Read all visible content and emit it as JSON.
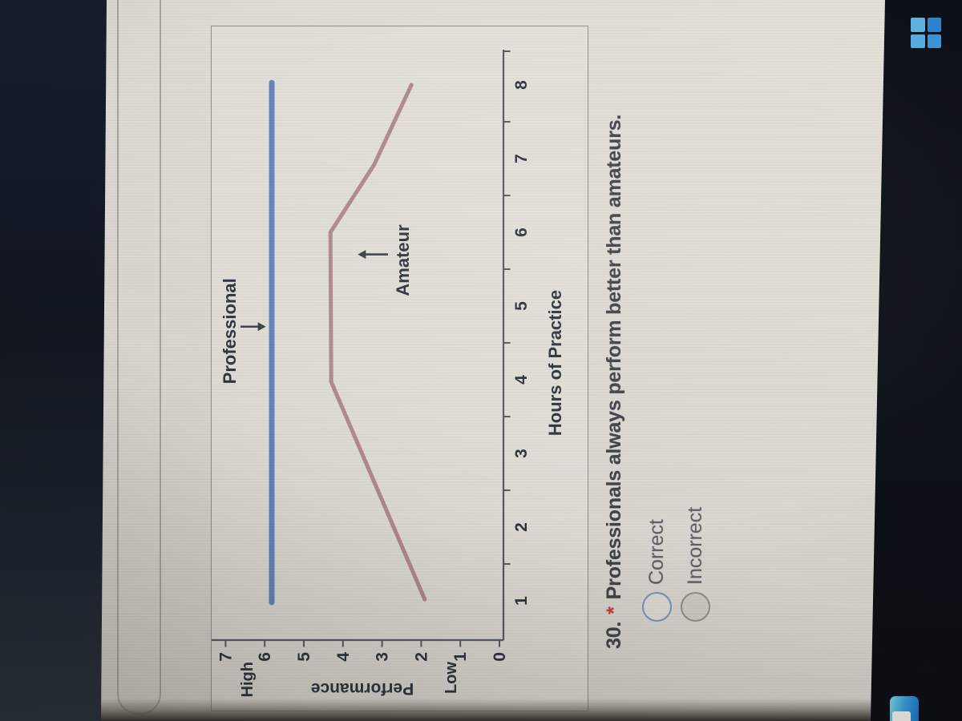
{
  "question": {
    "number": "30.",
    "required_marker": "*",
    "text": "Professionals always perform better than amateurs."
  },
  "options": [
    {
      "label": "Correct",
      "selected": false
    },
    {
      "label": "Incorrect",
      "selected": false
    }
  ],
  "colors": {
    "professional_line": "#5a7ab6",
    "amateur_line": "#aa8084",
    "required_marker_red": "#ce3a31",
    "correct_radio_ring": "#7693bb",
    "incorrect_radio_ring": "#8f8e89",
    "windows_logo_blue": "#3b93d4",
    "screen_background": "#d8d5ce"
  },
  "chart_data": {
    "type": "line",
    "title": "",
    "xlabel": "Hours of Practice",
    "ylabel": "Performance",
    "x_ticks": [
      1,
      2,
      3,
      4,
      5,
      6,
      7,
      8
    ],
    "y_ticks": [
      0,
      1,
      2,
      3,
      4,
      5,
      6,
      7
    ],
    "xlim": [
      0,
      8.5
    ],
    "ylim": [
      0,
      7.4
    ],
    "grid": false,
    "legend_position": "inline-annotations",
    "y_axis_end_labels": [
      {
        "text": "High",
        "p": 6.45
      },
      {
        "text": "Low",
        "p": 1.25
      }
    ],
    "series": [
      {
        "name": "Professional",
        "color": "#5a7ab6",
        "width": 7,
        "points": [
          [
            0.98,
            5.82
          ],
          [
            8.03,
            5.82
          ]
        ]
      },
      {
        "name": "Amateur",
        "color": "#aa8084",
        "width": 5,
        "points": [
          [
            1.02,
            1.91
          ],
          [
            3.97,
            4.3
          ],
          [
            6.0,
            4.32
          ],
          [
            6.92,
            3.2
          ],
          [
            8.0,
            2.25
          ]
        ]
      }
    ],
    "annotations": [
      {
        "text": "Professional",
        "h": 4.66,
        "p": 6.74,
        "arrow": {
          "h": 4.72,
          "from_p": 6.62,
          "to_p": 5.97
        }
      },
      {
        "text": "Amateur",
        "h": 5.62,
        "p": 2.32,
        "arrow": {
          "h": 5.7,
          "from_p": 2.85,
          "to_p": 3.62
        }
      }
    ]
  },
  "taskbar": {
    "icons": [
      {
        "name": "windows-start"
      },
      {
        "name": "pinned-app"
      }
    ]
  }
}
